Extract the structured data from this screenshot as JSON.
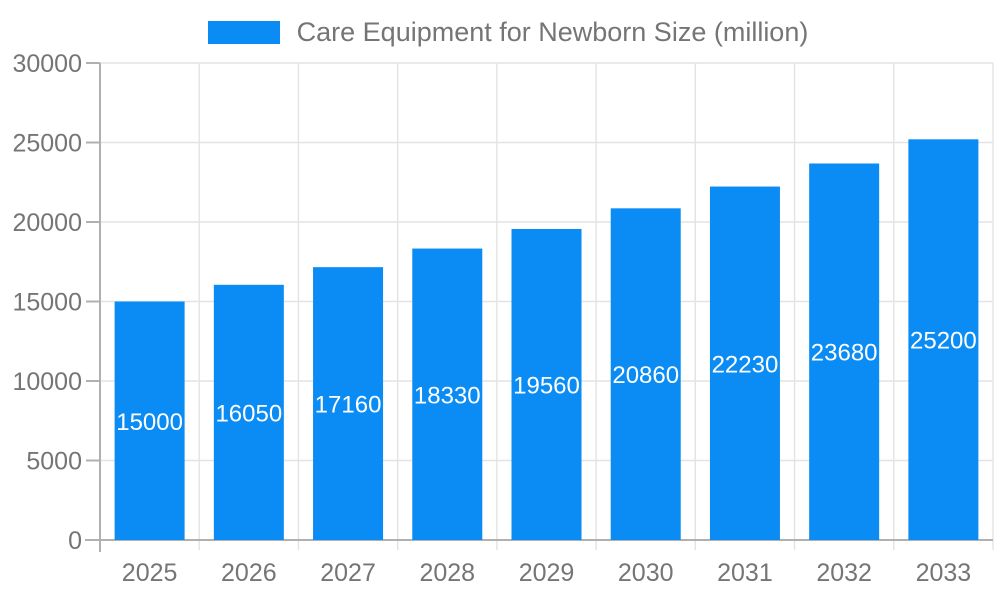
{
  "chart_data": {
    "type": "bar",
    "title": "Care Equipment for Newborn Size (million)",
    "legend": [
      "Care Equipment for Newborn Size (million)"
    ],
    "legend_position": "top-center",
    "categories": [
      "2025",
      "2026",
      "2027",
      "2028",
      "2029",
      "2030",
      "2031",
      "2032",
      "2033"
    ],
    "values": [
      15000,
      16050,
      17160,
      18330,
      19560,
      20860,
      22230,
      23680,
      25200
    ],
    "xlabel": "",
    "ylabel": "",
    "ylim": [
      0,
      30000
    ],
    "yticks": [
      0,
      5000,
      10000,
      15000,
      20000,
      25000,
      30000
    ],
    "grid": true,
    "bar_labels_visible": true
  },
  "colors": {
    "bar": "#0A8CF4",
    "bar_label": "#FFFFFF",
    "grid": "#E3E3E3",
    "axis": "#B0B0B0",
    "tick_text": "#757575",
    "legend_text": "#757575",
    "background": "#FFFFFF"
  }
}
